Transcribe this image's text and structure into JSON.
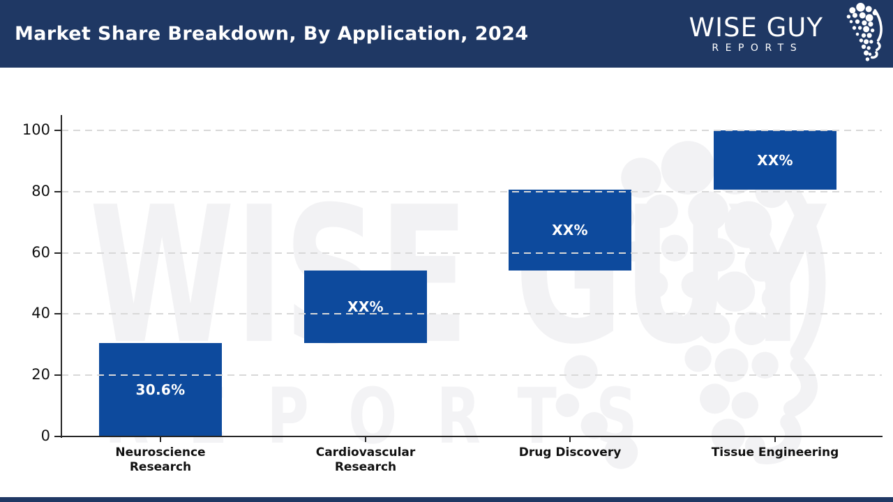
{
  "header": {
    "title": "Market Share Breakdown, By Application, 2024",
    "bg_color": "#1f3864",
    "logo": {
      "line1": "WISE GUY",
      "line2": "REPORTS"
    }
  },
  "watermark": {
    "line1": "WISE GUY",
    "line2": "REPORTS"
  },
  "chart_data": {
    "type": "bar",
    "subtype": "floating-waterfall",
    "title": "Market Share Breakdown, By Application, 2024",
    "categories": [
      "Neuroscience\nResearch",
      "Cardiovascular\nResearch",
      "Drug Discovery",
      "Tissue Engineering"
    ],
    "segments": [
      {
        "start": 0,
        "end": 30.6,
        "label": "30.6%"
      },
      {
        "start": 30.6,
        "end": 54.2,
        "label": "XX%"
      },
      {
        "start": 54.2,
        "end": 80.6,
        "label": "XX%"
      },
      {
        "start": 80.6,
        "end": 100,
        "label": "XX%"
      }
    ],
    "yticks": [
      0,
      20,
      40,
      60,
      80,
      100
    ],
    "ytick_labels": [
      "0",
      "20",
      "40",
      "60",
      "80",
      "100"
    ],
    "ylim": [
      0,
      105
    ],
    "xlabel": "",
    "ylabel": "",
    "bar_color": "#0d4a9d",
    "label_color": "#ffffff",
    "grid": "horizontal-dashed",
    "grid_color": "#d8d8d8",
    "axis_color": "#262626",
    "legend": "none"
  },
  "footer": {
    "bg_color": "#1f3864"
  }
}
